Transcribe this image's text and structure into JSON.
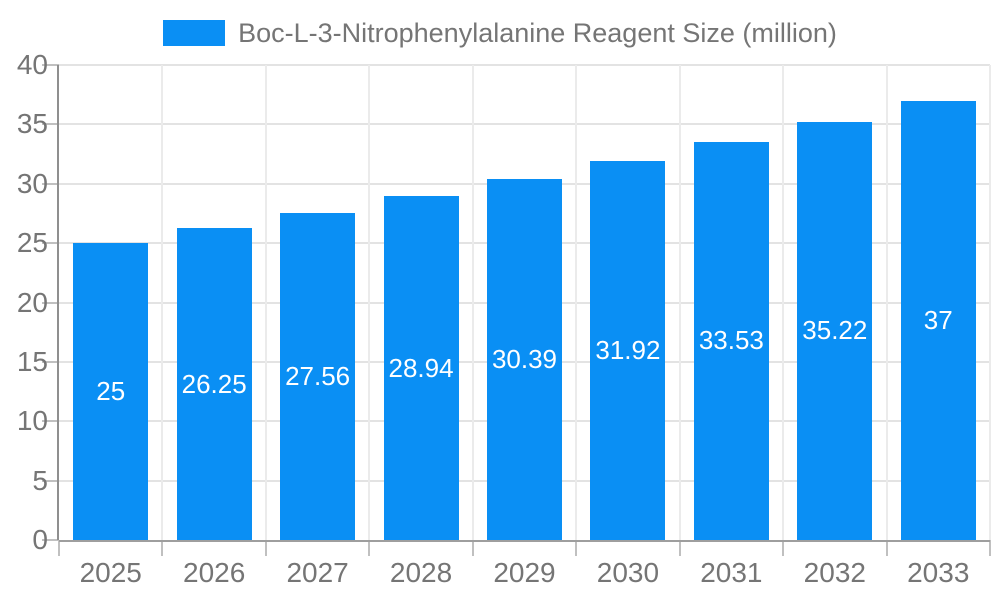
{
  "page": {
    "background": "#ffffff"
  },
  "chart_data": {
    "type": "bar",
    "title": "Boc-L-3-Nitrophenylalanine Reagent Size (million)",
    "legend": [
      "Boc-L-3-Nitrophenylalanine Reagent Size (million)"
    ],
    "legend_position": "top-center",
    "categories": [
      "2025",
      "2026",
      "2027",
      "2028",
      "2029",
      "2030",
      "2031",
      "2032",
      "2033"
    ],
    "values": [
      25,
      26.25,
      27.56,
      28.94,
      30.39,
      31.92,
      33.53,
      35.22,
      37
    ],
    "value_labels": [
      "25",
      "26.25",
      "27.56",
      "28.94",
      "30.39",
      "31.92",
      "33.53",
      "35.22",
      "37"
    ],
    "xlabel": "",
    "ylabel": "",
    "ylim": [
      0,
      40
    ],
    "yticks": [
      0,
      5,
      10,
      15,
      20,
      25,
      30,
      35,
      40
    ],
    "grid": true,
    "colors": {
      "bar": "#0a8ff4",
      "bar_value_text": "#ffffff",
      "axis_text": "#757575",
      "legend_text": "#757575",
      "gridline_h": "#e3e3e3",
      "gridline_v": "#ebebeb",
      "y_axis_line": "#8f8f8f",
      "x_axis_line": "#9e9e9e",
      "tick": "#c0c0c0"
    }
  }
}
